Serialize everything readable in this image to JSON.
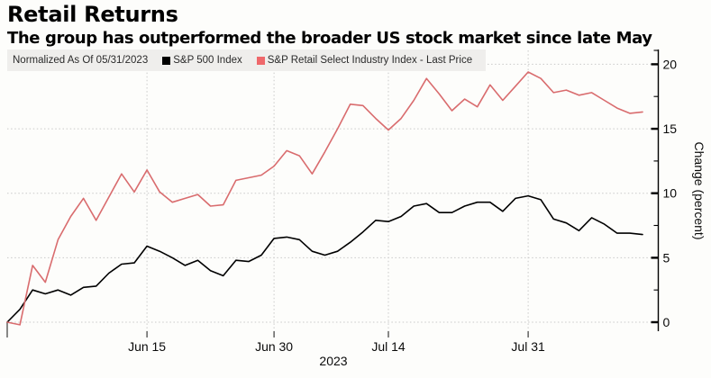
{
  "header": {
    "title": "Retail Returns",
    "subtitle": "The group has outperformed the broader US stock market since late May"
  },
  "legend": {
    "normalized_label": "Normalized As Of 05/31/2023",
    "series": [
      {
        "label": "S&P 500 Index",
        "color": "#000000"
      },
      {
        "label": "S&P Retail Select Industry Index - Last Price",
        "color": "#ef686b"
      }
    ]
  },
  "chart_data": {
    "type": "line",
    "title": "Retail Returns",
    "grid": "dotted",
    "y_axis": {
      "label": "Change (percent)",
      "side": "right",
      "ticks": [
        0,
        5,
        10,
        15,
        20
      ],
      "minor_tick_step": 2.5,
      "range": [
        -0.7,
        21.1
      ]
    },
    "x_axis": {
      "year_label": "2023",
      "ticks": [
        {
          "label": "Jun 15",
          "day_index": 11
        },
        {
          "label": "Jun 30",
          "day_index": 21
        },
        {
          "label": "Jul 14",
          "day_index": 30
        },
        {
          "label": "Jul 31",
          "day_index": 41
        }
      ]
    },
    "dates": [
      "05/31",
      "06/01",
      "06/02",
      "06/05",
      "06/06",
      "06/07",
      "06/08",
      "06/09",
      "06/12",
      "06/13",
      "06/14",
      "06/15",
      "06/16",
      "06/20",
      "06/21",
      "06/22",
      "06/23",
      "06/26",
      "06/27",
      "06/28",
      "06/29",
      "06/30",
      "07/03",
      "07/05",
      "07/06",
      "07/07",
      "07/10",
      "07/11",
      "07/12",
      "07/13",
      "07/14",
      "07/17",
      "07/18",
      "07/19",
      "07/20",
      "07/21",
      "07/24",
      "07/25",
      "07/26",
      "07/27",
      "07/28",
      "07/31",
      "08/01",
      "08/02",
      "08/03",
      "08/04",
      "08/07",
      "08/08",
      "08/09",
      "08/10",
      "08/11"
    ],
    "series": [
      {
        "name": "S&P 500 Index",
        "color": "#000000",
        "values": [
          0.0,
          1.0,
          2.5,
          2.2,
          2.5,
          2.1,
          2.7,
          2.8,
          3.8,
          4.5,
          4.6,
          5.9,
          5.5,
          5.0,
          4.4,
          4.8,
          4.0,
          3.6,
          4.8,
          4.7,
          5.2,
          6.5,
          6.6,
          6.4,
          5.5,
          5.2,
          5.5,
          6.2,
          7.0,
          7.9,
          7.8,
          8.2,
          9.0,
          9.2,
          8.5,
          8.5,
          9.0,
          9.3,
          9.3,
          8.6,
          9.6,
          9.8,
          9.5,
          8.0,
          7.7,
          7.1,
          8.1,
          7.6,
          6.9,
          6.9,
          6.8
        ]
      },
      {
        "name": "S&P Retail Select Industry Index - Last Price",
        "color": "#d96c6e",
        "values": [
          0.0,
          -0.2,
          4.4,
          3.1,
          6.4,
          8.2,
          9.6,
          7.9,
          9.7,
          11.5,
          10.1,
          11.8,
          10.1,
          9.3,
          9.6,
          9.9,
          9.0,
          9.1,
          11.0,
          11.2,
          11.4,
          12.1,
          13.3,
          12.9,
          11.5,
          13.2,
          15.0,
          16.9,
          16.8,
          15.8,
          14.9,
          15.8,
          17.2,
          18.9,
          17.7,
          16.4,
          17.3,
          16.7,
          18.4,
          17.2,
          18.3,
          19.4,
          18.9,
          17.8,
          18.0,
          17.6,
          17.8,
          17.2,
          16.6,
          16.2,
          16.3
        ]
      }
    ]
  }
}
